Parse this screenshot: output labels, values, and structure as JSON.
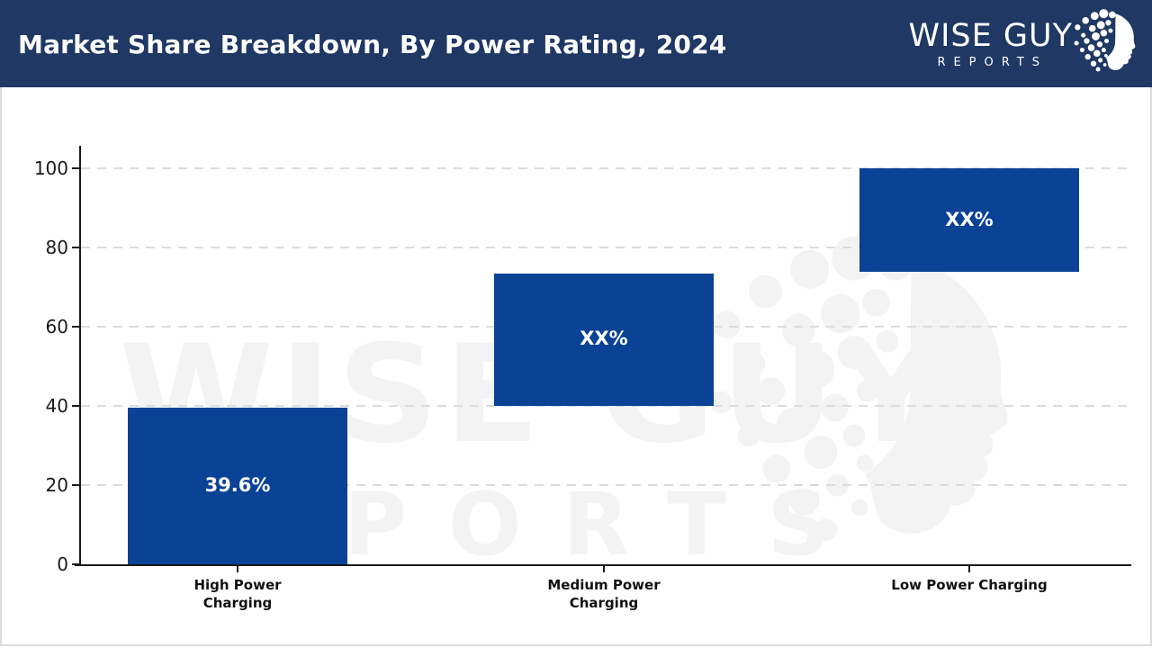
{
  "header": {
    "title": "Market Share Breakdown, By Power Rating, 2024",
    "logo": {
      "name_top": "WISE GUY",
      "name_bottom": "REPORTS"
    }
  },
  "watermark": {
    "text_top": "WISE GUY",
    "text_bottom": "REPORTS"
  },
  "colors": {
    "header_bg": "#1f3864",
    "bar": "#0a4296",
    "grid": "#dcdcdc",
    "axis": "#1a1a1a",
    "bar_label": "#ffffff",
    "watermark": "#f3f3f3",
    "frame": "#dcdcdc"
  },
  "chart_data": {
    "type": "bar",
    "subtype": "floating-waterfall",
    "title": "Market Share Breakdown, By Power Rating, 2024",
    "categories": [
      "High Power Charging",
      "Medium Power Charging",
      "Low Power Charging"
    ],
    "category_label_lines": [
      [
        "High Power",
        "Charging"
      ],
      [
        "Medium Power",
        "Charging"
      ],
      [
        "Low Power Charging"
      ]
    ],
    "segments": [
      {
        "category": "High Power Charging",
        "start": 0,
        "end": 39.6,
        "label": "39.6%"
      },
      {
        "category": "Medium Power Charging",
        "start": 40,
        "end": 73.5,
        "label": "XX%"
      },
      {
        "category": "Low Power Charging",
        "start": 73.8,
        "end": 100,
        "label": "XX%"
      }
    ],
    "ylim": [
      0,
      100
    ],
    "yticks": [
      0,
      20,
      40,
      60,
      80,
      100
    ],
    "xlabel": "",
    "ylabel": "",
    "grid": "horizontal-dashed",
    "legend": "none"
  }
}
